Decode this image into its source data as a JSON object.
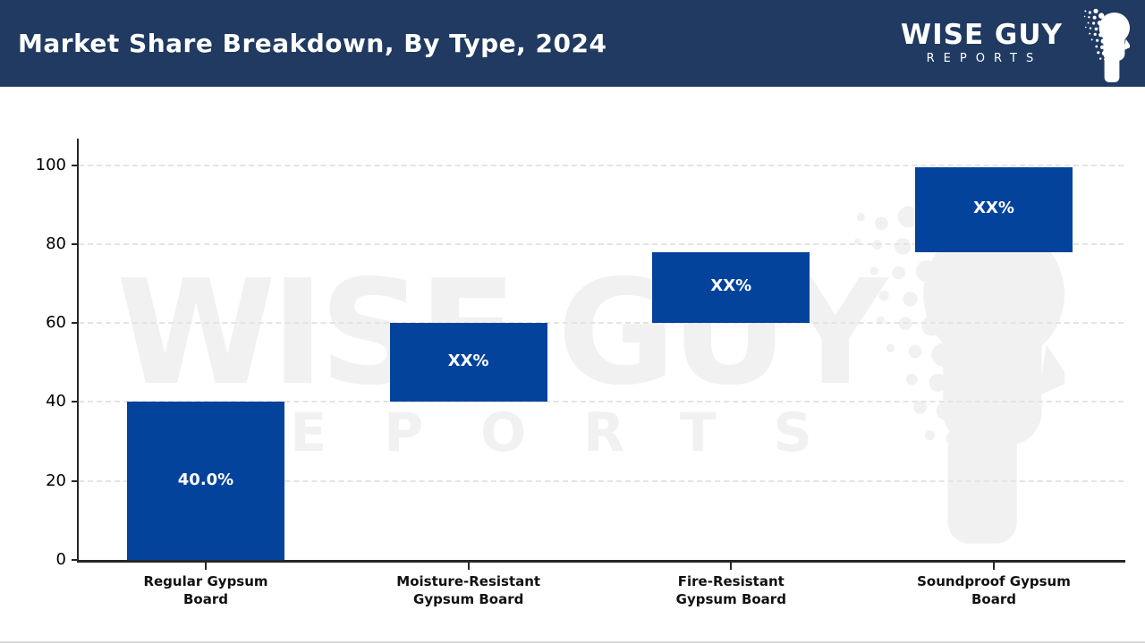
{
  "header": {
    "title": "Market Share Breakdown, By Type, 2024",
    "logo_line1": "WISE GUY",
    "logo_line2": "REPORTS"
  },
  "watermark": {
    "line1": "WISE GUY",
    "line2": "REPORTS"
  },
  "colors": {
    "header_bg": "#203a61",
    "bar_blue": "#04439c",
    "grid_line": "#e4e4e4",
    "axis": "#262626",
    "bar_label_text": "#ffffff",
    "watermark": "#f1f1f1"
  },
  "chart_data": {
    "type": "bar",
    "subtype": "waterfall",
    "title": "Market Share Breakdown, By Type, 2024",
    "categories": [
      "Regular Gypsum Board",
      "Moisture-Resistant Gypsum Board",
      "Fire-Resistant Gypsum Board",
      "Soundproof Gypsum Board"
    ],
    "category_label_lines": [
      [
        "Regular Gypsum",
        "Board"
      ],
      [
        "Moisture-Resistant",
        "Gypsum Board"
      ],
      [
        "Fire-Resistant",
        "Gypsum Board"
      ],
      [
        "Soundproof Gypsum",
        "Board"
      ]
    ],
    "segments": [
      {
        "category": "Regular Gypsum Board",
        "start": 0,
        "end": 40,
        "label": "40.0%"
      },
      {
        "category": "Moisture-Resistant Gypsum Board",
        "start": 40,
        "end": 60,
        "label": "XX%"
      },
      {
        "category": "Fire-Resistant Gypsum Board",
        "start": 60,
        "end": 78,
        "label": "XX%"
      },
      {
        "category": "Soundproof Gypsum Board",
        "start": 78,
        "end": 99.5,
        "label": "XX%"
      }
    ],
    "yticks": [
      0,
      20,
      40,
      60,
      80,
      100
    ],
    "ylim": [
      0,
      106
    ],
    "xlabel": "",
    "ylabel": "",
    "grid": "horizontal-dashed",
    "legend": "none",
    "bar_color": "#04439c"
  }
}
